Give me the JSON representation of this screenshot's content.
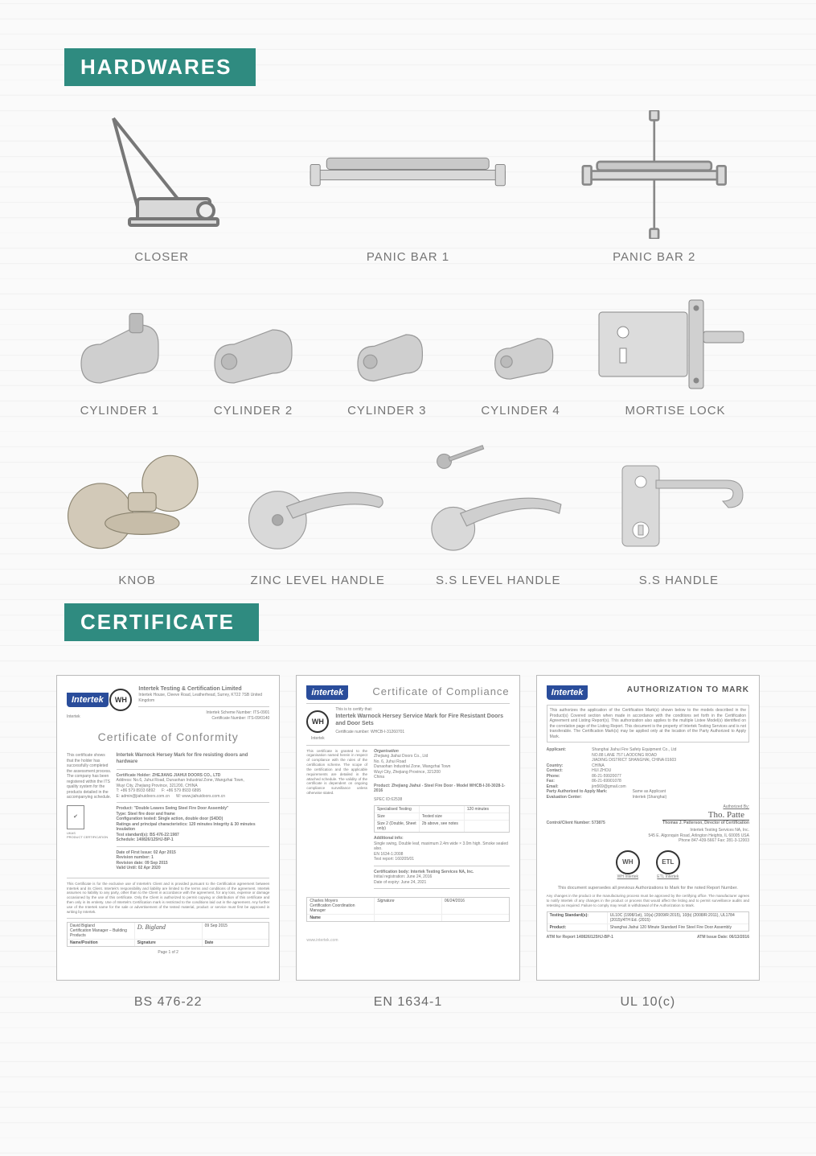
{
  "brand_color": "#2f8b80",
  "text_color": "#6b6b6b",
  "page_bg_grid": "#f2f2f2",
  "sections": {
    "hardwares": {
      "title": "HARDWARES"
    },
    "certificate": {
      "title": "CERTIFICATE"
    }
  },
  "hardwares": {
    "row1": [
      {
        "name": "closer",
        "label": "CLOSER"
      },
      {
        "name": "panic-bar-1",
        "label": "PANIC BAR  1"
      },
      {
        "name": "panic-bar-2",
        "label": "PANIC BAR  2"
      }
    ],
    "row2": [
      {
        "name": "cylinder-1",
        "label": "CYLINDER 1"
      },
      {
        "name": "cylinder-2",
        "label": "CYLINDER 2"
      },
      {
        "name": "cylinder-3",
        "label": "CYLINDER 3"
      },
      {
        "name": "cylinder-4",
        "label": "CYLINDER 4"
      },
      {
        "name": "mortise-lock",
        "label": "MORTISE LOCK"
      }
    ],
    "row3": [
      {
        "name": "knob",
        "label": "KNOB"
      },
      {
        "name": "zinc-level-handle",
        "label": "ZINC LEVEL HANDLE"
      },
      {
        "name": "ss-level-handle",
        "label": "S.S LEVEL HANDLE"
      },
      {
        "name": "ss-handle",
        "label": "S.S HANDLE"
      }
    ]
  },
  "certificates": [
    {
      "name": "bs-476-22",
      "label": "BS 476-22",
      "card": {
        "badge": "Intertek",
        "org": "Intertek Testing & Certification Limited",
        "org_addr": "Intertek House, Cleeve Road, Leatherhead, Surrey, KT22 7SB United Kingdom",
        "scheme": "Intertek Scheme Number: ITS-0901",
        "cert_no": "Certificate Number: ITS-09/0140",
        "title": "Certificate of Conformity",
        "subtitle": "Intertek Warnock Hersey Mark for fire resisting doors and hardware",
        "holder": "Certificate Holder: ZHEJIANG JIAHUI DOORS CO., LTD",
        "address": "Address: No.6, Juhui Road, Dunaohan Industrial Zone, Wangzhai Town,\nWuyi City, Zhejiang Province, 321200, CHINA",
        "tel": "T: +86 579 8933 6892",
        "fax": "F: +86 579 8933 6895",
        "email": "E: admin@jiahuidoors.com.cn",
        "web": "W: www.jiahuidoors.com.cn",
        "product": "Product: \"Double Leaves Swing Steel Fire Door Assembly\"\nType: Steel fire door and frame\nConfiguration tested: Single action, double door (S4DD)\nRatings and principal characteristics: 120 minutes Integrity & 30 minutes Insulation\nTest standard(s): BS 476-22:1987\nSchedule: 140826/125HJ-BP-1",
        "dates": "Date of First Issue: 02 Apr 2015\nRevision number: 1\nRevision date: 09 Sep 2015\nValid Until: 02 Apr 2020",
        "disclaimer": "This Certificate is for the exclusive use of Intertek's Client and is provided pursuant to the Certification agreement between Intertek and its Client. Intertek's responsibility and liability are limited to the terms and conditions of the agreement. Intertek assumes no liability to any party, other than to the Client in accordance with the agreement, for any loss, expense or damage occasioned by the use of this certificate. Only the Client is authorized to permit copying or distribution of this certificate and then only in its entirety. Use of Intertek's Certification mark is restricted to the conditions laid out in the agreement. Any further use of the Intertek name for the sale or advertisement of the tested material, product or service must first be approved in writing by Intertek.",
        "signatory": "David Bigland\nCertification Manager – Building Products",
        "sig_date": "09 Sep 2015",
        "footer_cols": [
          "Name/Position",
          "Signature",
          "Date"
        ],
        "page": "Page 1 of 2"
      }
    },
    {
      "name": "en-1634-1",
      "label": "EN 1634-1",
      "card": {
        "badge": "intertek",
        "title": "Certificate of Compliance",
        "award_line": "This is to certify that:",
        "mark": "Intertek Warnock Hersey Service Mark for Fire Resistant Doors and Door Sets",
        "cert_no": "Certificate number: WHCB-I-31260701",
        "org_title": "Organisation",
        "org_body": "Zhejiang Jiahui Doors Co., Ltd\nNo. 6, Juhui Road\nDunaohan Industrial Zone, Wangzhai Town\nWuyi City, Zhejiang Province, 321200\nChina",
        "product_line": "Product: Zhejiang Jiahui - Steel Fire Door - Model WHCB-I-30-3028-1-2016",
        "spec": "SPEC ID:62538",
        "table": {
          "rows": [
            [
              "Specialised Testing",
              "",
              "120 minutes"
            ],
            [
              "Size",
              "Tested size",
              ""
            ],
            [
              "Size 2 (Double, Sheet only)",
              "2b above, see notes",
              ""
            ]
          ]
        },
        "additional": "Single swing, Double leaf, maximum 2.4m wide × 3.0m high. Smoke sealed also.\nEN 1634-1:2008\nTest report: 160205/01",
        "cert_body": "Certification body: Intertek Testing Services NA, Inc.",
        "init_reg": "Initial registration: June 24, 2016",
        "expiry": "Date of expiry: June 24, 2021",
        "signatory": "Charles Moyers\nCertification Coordination Manager",
        "sig_date": "06/24/2016",
        "url": "www.intertek.com"
      }
    },
    {
      "name": "ul-10c",
      "label": "UL 10(c)",
      "card": {
        "badge": "Intertek",
        "heading": "AUTHORIZATION TO MARK",
        "intro": "This authorizes the application of the Certification Mark(s) shown below to the models described in the Product(s) Covered section when made in accordance with the conditions set forth in the Certification Agreement and Listing Report(s). This authorization also applies to the multiple Listee Model(s) identified on the correlation page of the Listing Report. This document is the property of Intertek Testing Services and is not transferable. The Certification Mark(s) may be applied only at the location of the Party Authorized to Apply Mark.",
        "applicant_label": "Applicant:",
        "applicant": "Shanghai Jiahui Fire Safety Equipment Co., Ltd\nNO.88 LANE 757 LAODONG ROAD\nJIADING DISTRICT SHANGHAI, CHINA 01603",
        "fields": {
          "Country:": "CHINA",
          "Contact:": "HUI ZHOU",
          "Phone:": "86-21-59920077",
          "Fax:": "86-21-69901078",
          "Email:": "jim569@gmail.com"
        },
        "party_label": "Party Authorized to Apply Mark:",
        "party": "Same as Applicant",
        "eval_label": "Evaluation Center:",
        "eval": "Intertek (Shanghai)",
        "control_label": "Control/Client Number: 573875",
        "authorized_by": "Authorized By:",
        "sig_name": "Thomas J. Patterson, Director of Certification",
        "footnote": "Intertek Testing Services NA, Inc.\n545 E. Algonquin Road, Arlington Heights, IL 60005 USA\nPhone 847-439-5667   Fax: 281-3-12003",
        "marks_line": "This document supersedes all previous Authorizations to Mark for the noted Report Number.",
        "logo_left": "WH Intertek",
        "logo_right": "ETL Intertek",
        "table": {
          "rows": [
            [
              "Testing Standard(s):",
              "UL10C (1998/1st), 10(a) (2009/R:2015), 10(b) (2008/R:2011), UL1784 (2015)/4TH Ed. (2015)"
            ],
            [
              "Product:",
              "Shanghai Jiahui 120 Minute Standard Fire Steel Fire Door Assembly"
            ]
          ]
        },
        "atm_line": "ATM for Report 140826/125HJ-BP-1",
        "atm_date": "ATM Issue Date: 06/13/2016"
      }
    }
  ]
}
